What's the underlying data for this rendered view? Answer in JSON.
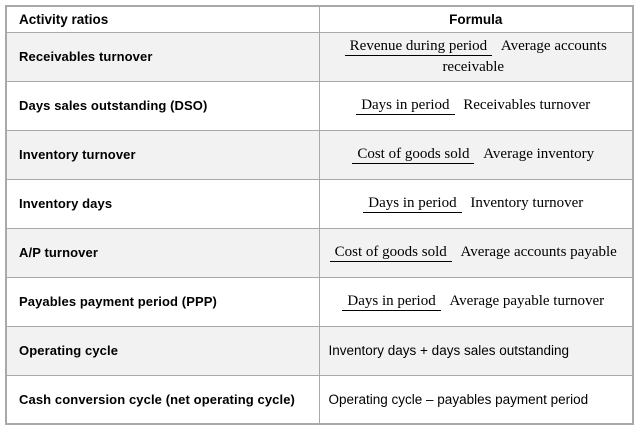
{
  "table": {
    "header": {
      "activity_col": "Activity ratios",
      "formula_col": "Formula"
    },
    "rows": [
      {
        "label": "Receivables turnover",
        "formula_type": "fraction",
        "numerator": "Revenue during period",
        "denominator": "Average accounts receivable",
        "shaded": true
      },
      {
        "label": "Days sales outstanding (DSO)",
        "formula_type": "fraction",
        "numerator": "Days in period",
        "denominator": "Receivables turnover",
        "shaded": false
      },
      {
        "label": "Inventory turnover",
        "formula_type": "fraction",
        "numerator": "Cost of goods sold",
        "denominator": "Average inventory",
        "shaded": true
      },
      {
        "label": "Inventory days",
        "formula_type": "fraction",
        "numerator": "Days in period",
        "denominator": "Inventory turnover",
        "shaded": false
      },
      {
        "label": "A/P turnover",
        "formula_type": "fraction",
        "numerator": "Cost of goods sold",
        "denominator": "Average accounts payable",
        "shaded": true
      },
      {
        "label": "Payables payment period (PPP)",
        "formula_type": "fraction",
        "numerator": "Days in period",
        "denominator": "Average payable turnover",
        "shaded": false
      },
      {
        "label": "Operating cycle",
        "formula_type": "text",
        "text": "Inventory days + days sales outstanding",
        "shaded": true
      },
      {
        "label": "Cash conversion cycle (net operating cycle)",
        "formula_type": "text",
        "text": "Operating cycle – payables payment period",
        "shaded": false
      }
    ]
  },
  "colors": {
    "row_shade": "#f2f2f2",
    "border": "#a9a9a9",
    "text": "#000000",
    "background": "#ffffff"
  }
}
